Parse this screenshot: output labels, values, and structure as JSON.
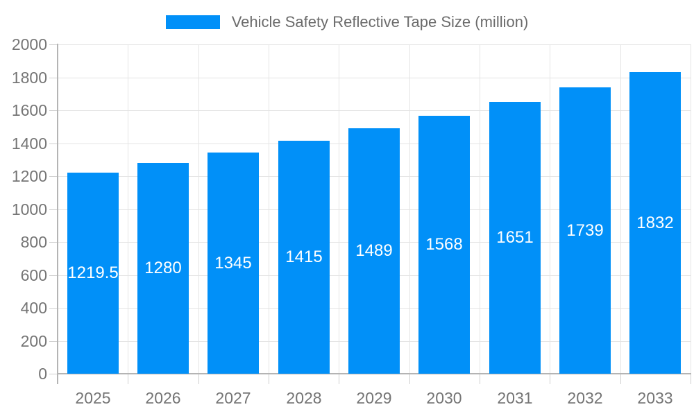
{
  "legend": {
    "label": "Vehicle Safety Reflective Tape Size (million)"
  },
  "colors": {
    "bar": "#0190f8",
    "grid": "#e4e4e4",
    "axis": "#b4b4b4",
    "tick": "#cfcfcf",
    "tick_label": "#757575",
    "title": "#6b6b6b",
    "data_label": "#ffffff",
    "background": "#ffffff"
  },
  "chart_data": {
    "type": "bar",
    "title": "Vehicle Safety Reflective Tape Size (million)",
    "categories": [
      "2025",
      "2026",
      "2027",
      "2028",
      "2029",
      "2030",
      "2031",
      "2032",
      "2033"
    ],
    "values": [
      1219.5,
      1280,
      1345,
      1415,
      1489,
      1568,
      1651,
      1739,
      1832
    ],
    "data_labels": [
      "1219.5",
      "1280",
      "1345",
      "1415",
      "1489",
      "1568",
      "1651",
      "1739",
      "1832"
    ],
    "xlabel": "",
    "ylabel": "",
    "ylim": [
      0,
      2000
    ],
    "y_ticks": [
      0,
      200,
      400,
      600,
      800,
      1000,
      1200,
      1400,
      1600,
      1800,
      2000
    ],
    "grid": true,
    "legend_position": "top"
  }
}
